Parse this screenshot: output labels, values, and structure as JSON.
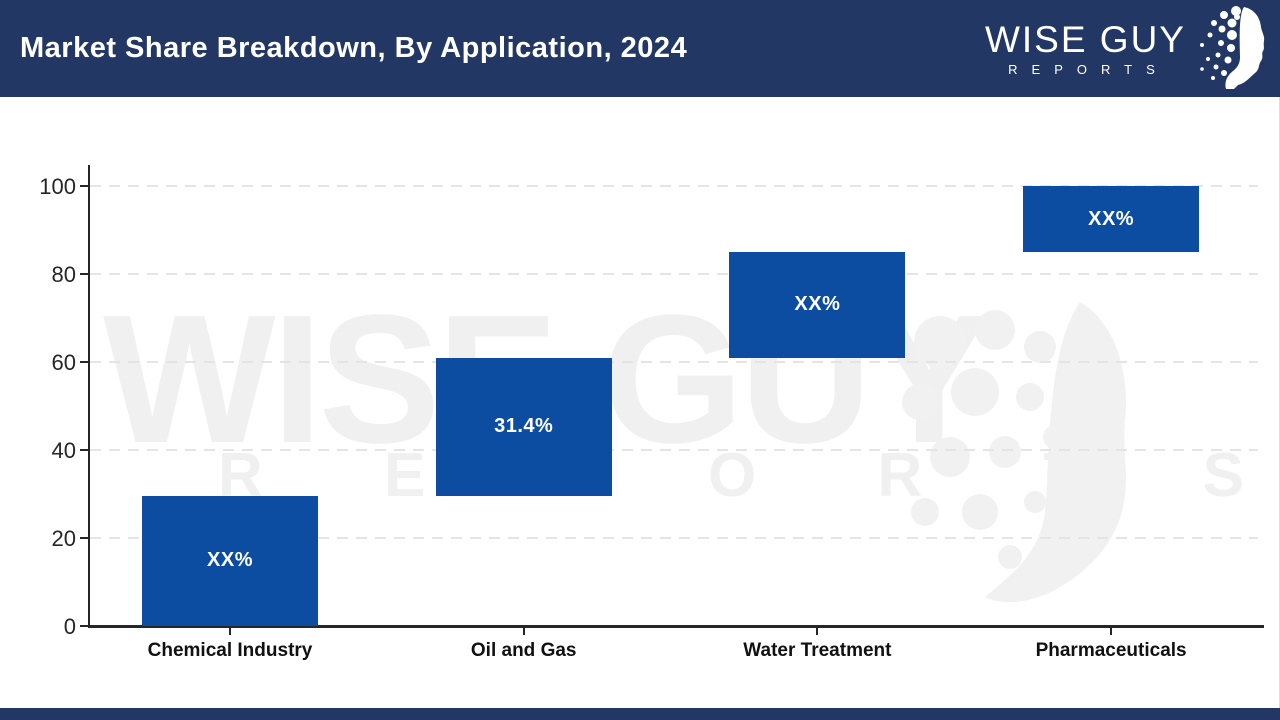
{
  "header": {
    "title": "Market Share Breakdown, By Application, 2024",
    "brand": {
      "line1": "WISE GUY",
      "line2": "REPORTS"
    }
  },
  "watermark": {
    "line1": "WISE GUY",
    "line2": "R E P O R T S"
  },
  "colors": {
    "header_bg": "#223763",
    "footer_bg": "#223763",
    "bar": "#0c4da2",
    "axis": "#262626",
    "gridline": "#e4e4e4",
    "watermark": "#f0f0f0",
    "tick_text": "#262626",
    "bar_label_text": "#ffffff"
  },
  "chart_data": {
    "type": "bar",
    "subtype": "floating-waterfall",
    "title": "Market Share Breakdown, By Application, 2024",
    "categories": [
      "Chemical Industry",
      "Oil and Gas",
      "Water Treatment",
      "Pharmaceuticals"
    ],
    "segments": [
      {
        "category": "Chemical Industry",
        "start": 0,
        "end": 29.6,
        "label": "XX%"
      },
      {
        "category": "Oil and Gas",
        "start": 29.6,
        "end": 61.0,
        "label": "31.4%"
      },
      {
        "category": "Water Treatment",
        "start": 61.0,
        "end": 85.0,
        "label": "XX%"
      },
      {
        "category": "Pharmaceuticals",
        "start": 85.0,
        "end": 100.0,
        "label": "XX%"
      }
    ],
    "xlabel": "",
    "ylabel": "",
    "ylim": [
      0,
      100
    ],
    "yticks": [
      0,
      20,
      40,
      60,
      80,
      100
    ],
    "grid": "horizontal-dashed",
    "legend": "none"
  }
}
